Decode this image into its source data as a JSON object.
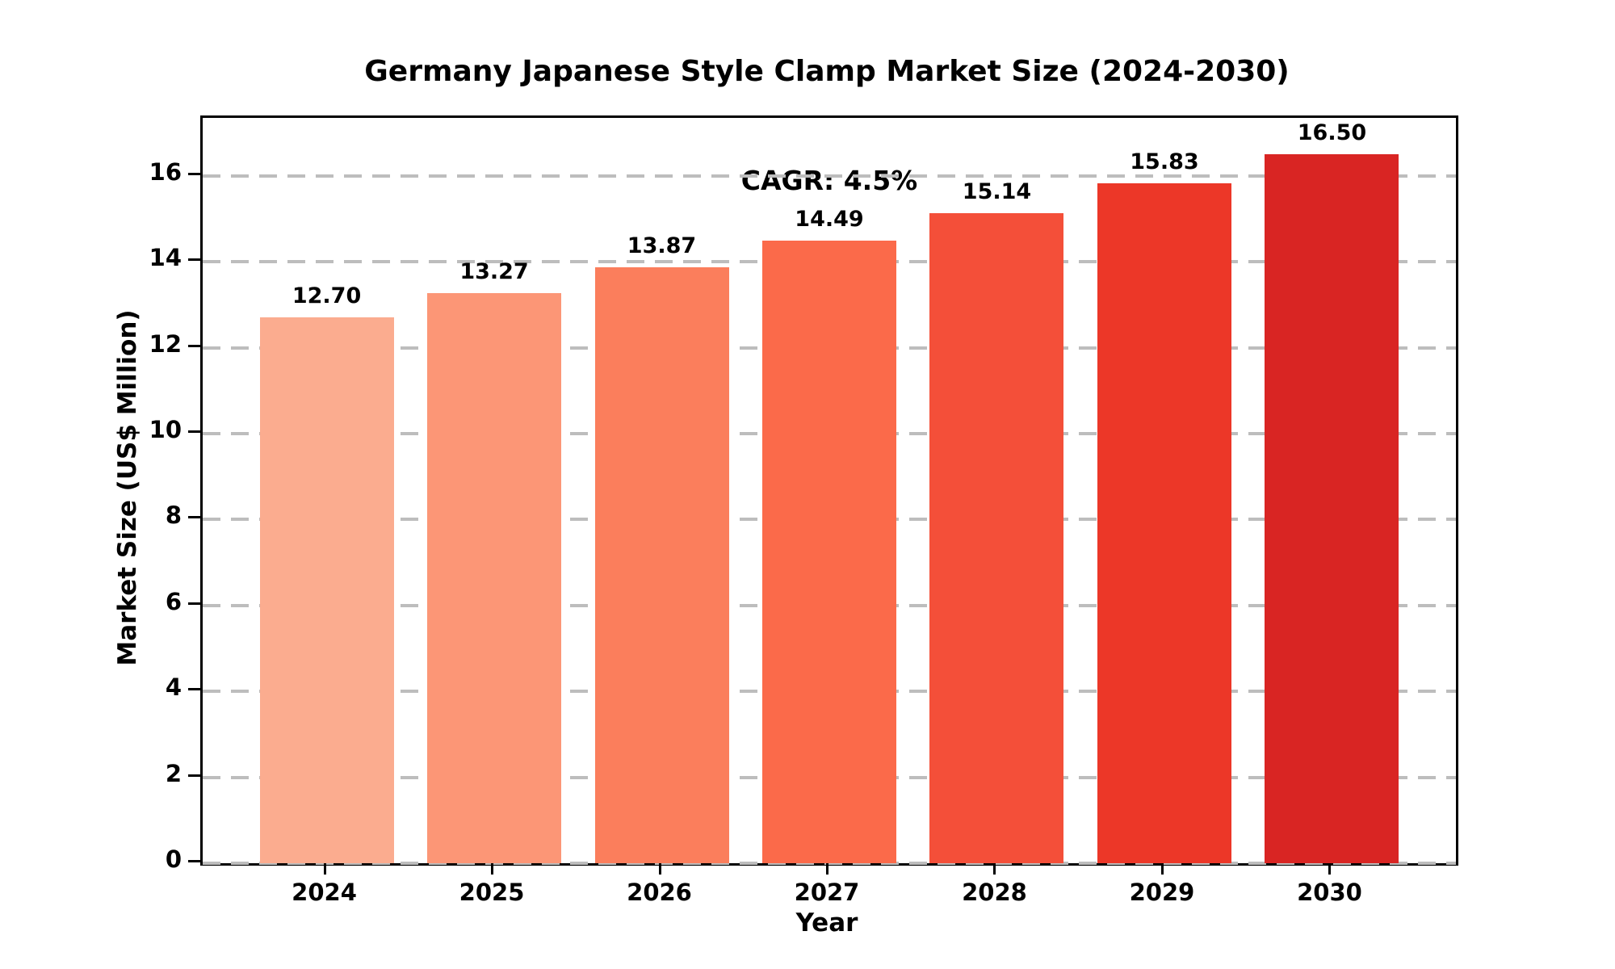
{
  "title": "Germany Japanese Style Clamp Market Size (2024-2030)",
  "annotation": "CAGR: 4.5%",
  "chart_data": {
    "type": "bar",
    "title": "Germany Japanese Style Clamp Market Size (2024-2030)",
    "categories": [
      "2024",
      "2025",
      "2026",
      "2027",
      "2028",
      "2029",
      "2030"
    ],
    "values": [
      12.7,
      13.27,
      13.87,
      14.49,
      15.14,
      15.83,
      16.5
    ],
    "value_labels": [
      "12.70",
      "13.27",
      "13.87",
      "14.49",
      "15.14",
      "15.83",
      "16.50"
    ],
    "bar_colors": [
      "#fbac8f",
      "#fc9676",
      "#fb7e5c",
      "#fb6a4a",
      "#f44f39",
      "#ec3728",
      "#d92523"
    ],
    "xlabel": "Year",
    "ylabel": "Market Size (US$ Million)",
    "yticks": [
      0,
      2,
      4,
      6,
      8,
      10,
      12,
      14,
      16
    ],
    "ytick_labels": [
      "0",
      "2",
      "4",
      "6",
      "8",
      "10",
      "12",
      "14",
      "16"
    ],
    "ylim": [
      0,
      17.35
    ],
    "annotation": "CAGR: 4.5%",
    "legend": "none",
    "grid": "horizontal-dashed",
    "grid_color": "#bdbdbd",
    "spine_color": "#000000",
    "background_color": "#ffffff"
  }
}
